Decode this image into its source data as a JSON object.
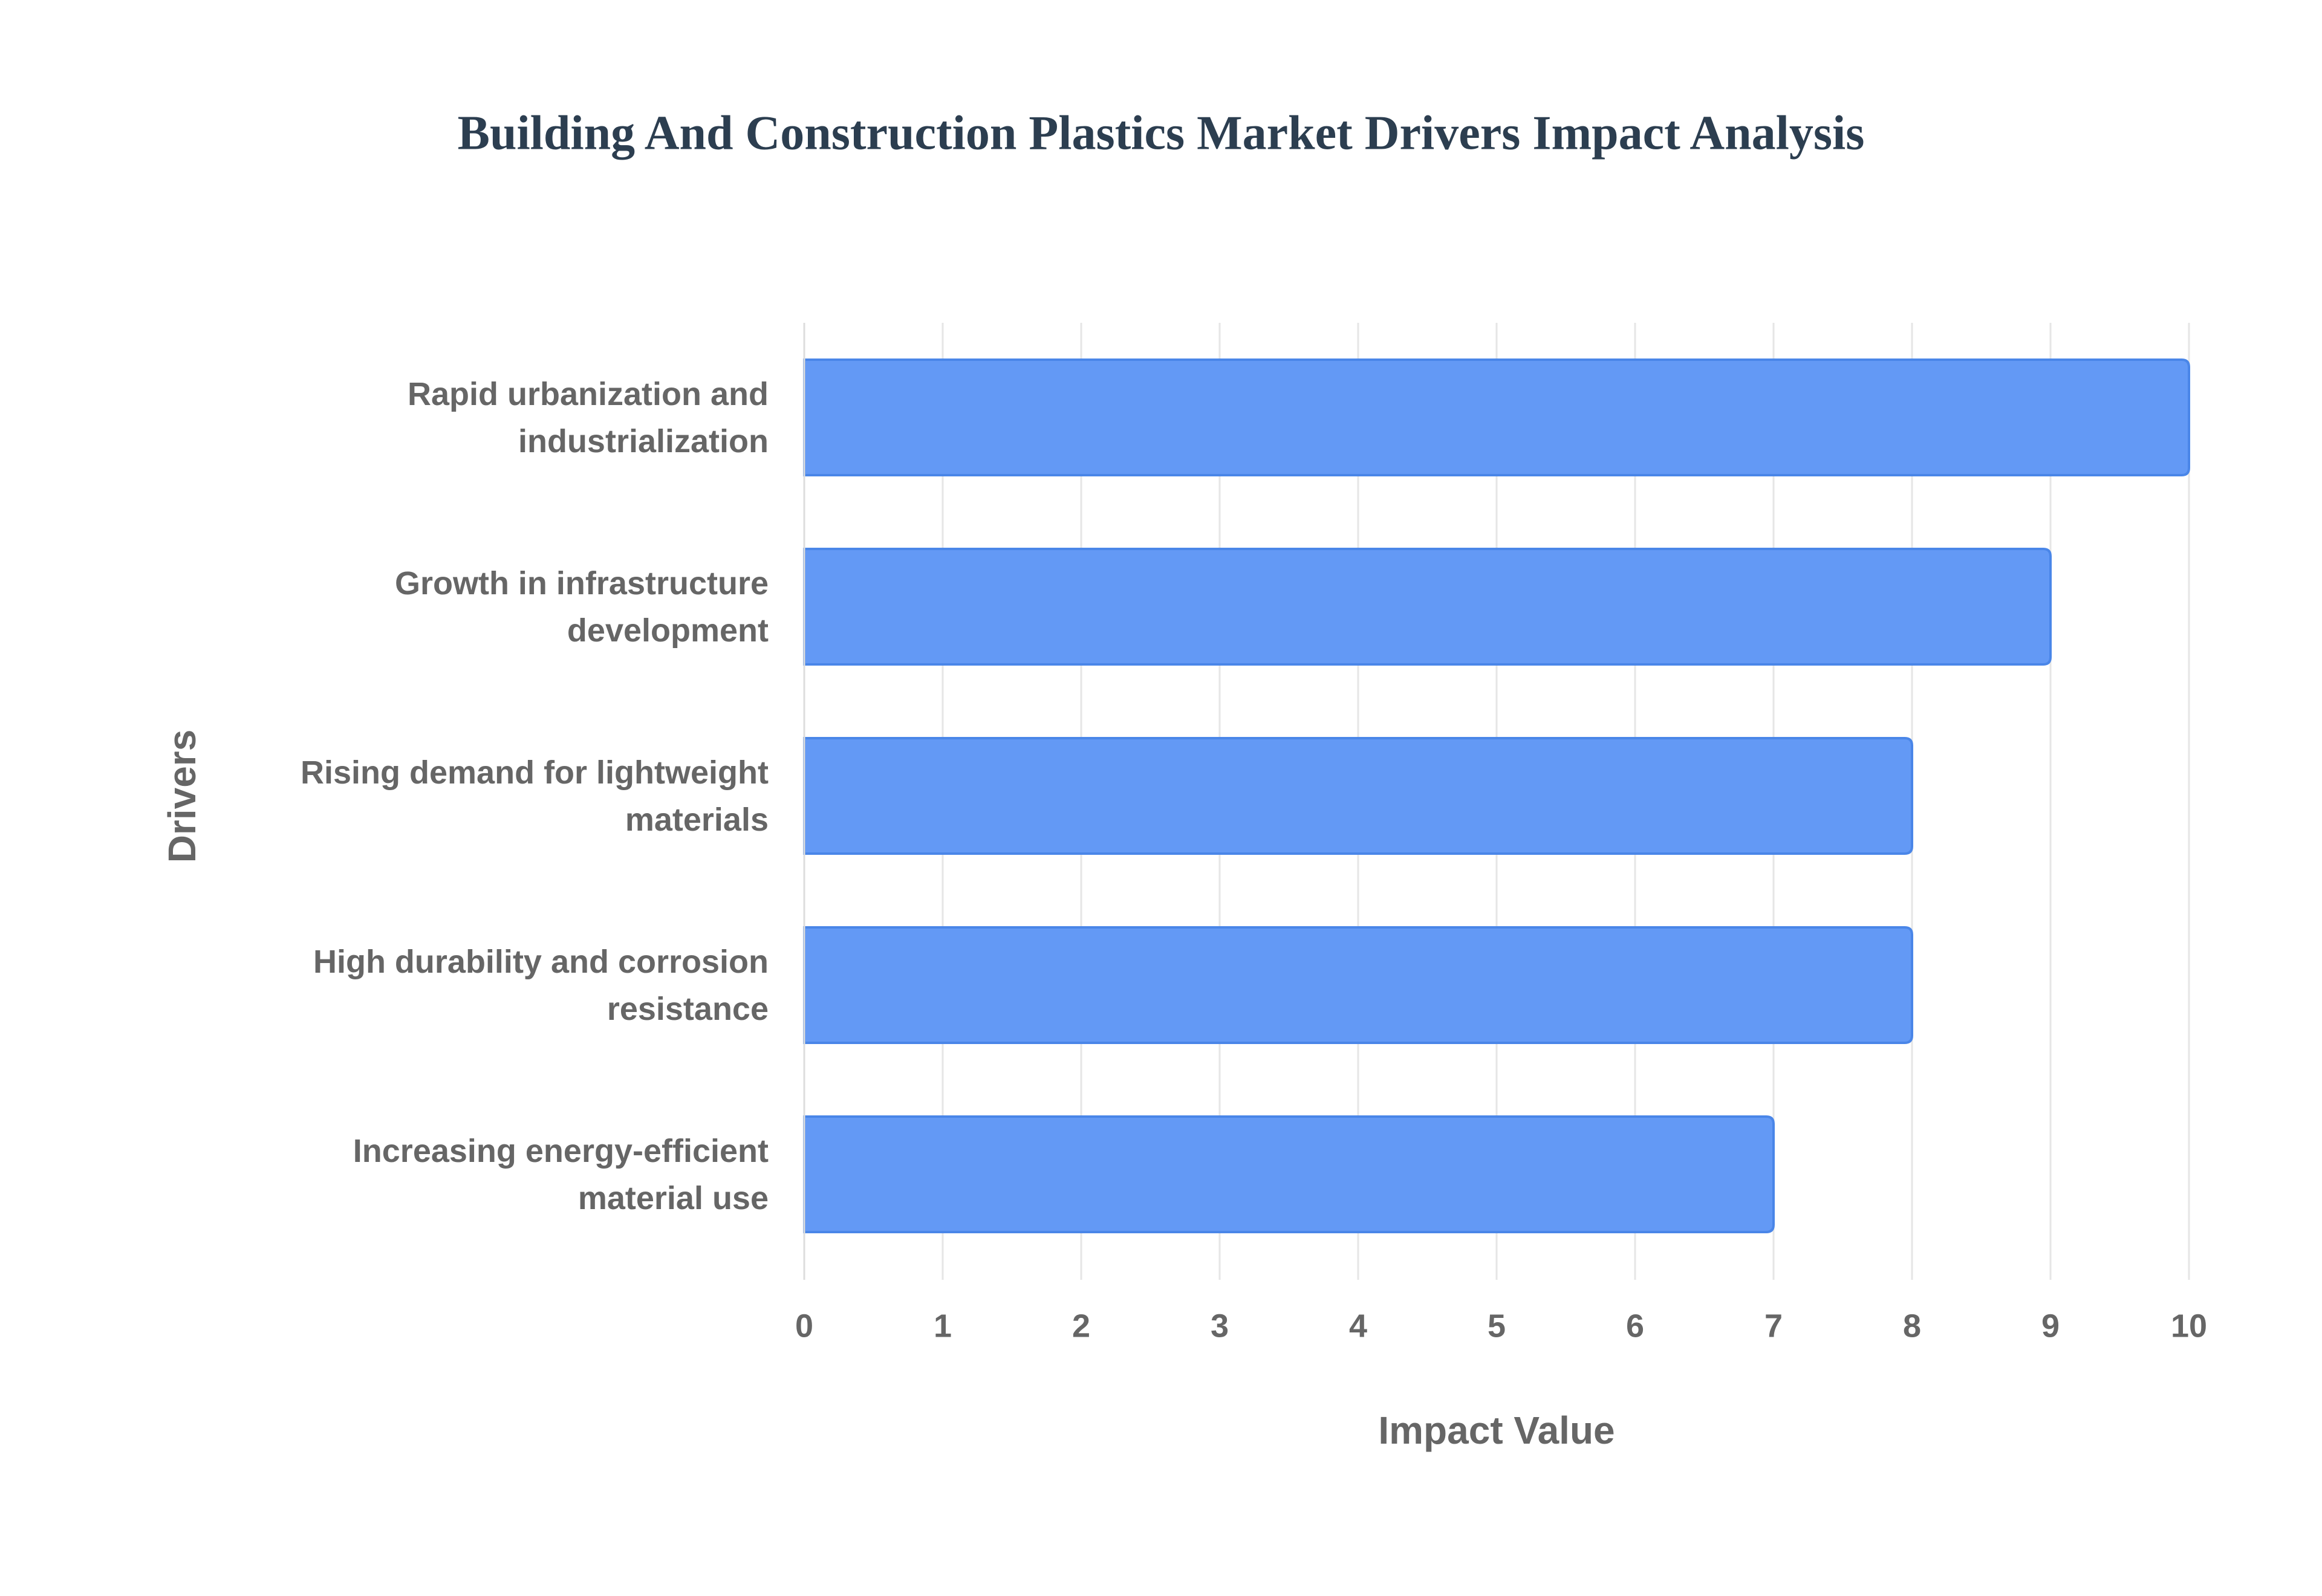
{
  "chart_data": {
    "type": "bar",
    "orientation": "horizontal",
    "title": "Building And Construction Plastics Market Drivers Impact Analysis",
    "x_label": "Impact Value",
    "y_label": "Drivers",
    "categories": [
      "Rapid urbanization and industrialization",
      "Growth in infrastructure development",
      "Rising demand for lightweight materials",
      "High durability and corrosion resistance",
      "Increasing energy-efficient material use"
    ],
    "values": [
      10,
      9,
      8,
      8,
      7
    ],
    "color": "#6399f5",
    "xlim": [
      0,
      10
    ],
    "xticks": [
      0,
      1,
      2,
      3,
      4,
      5,
      6,
      7,
      8,
      9,
      10
    ],
    "grid": true
  }
}
